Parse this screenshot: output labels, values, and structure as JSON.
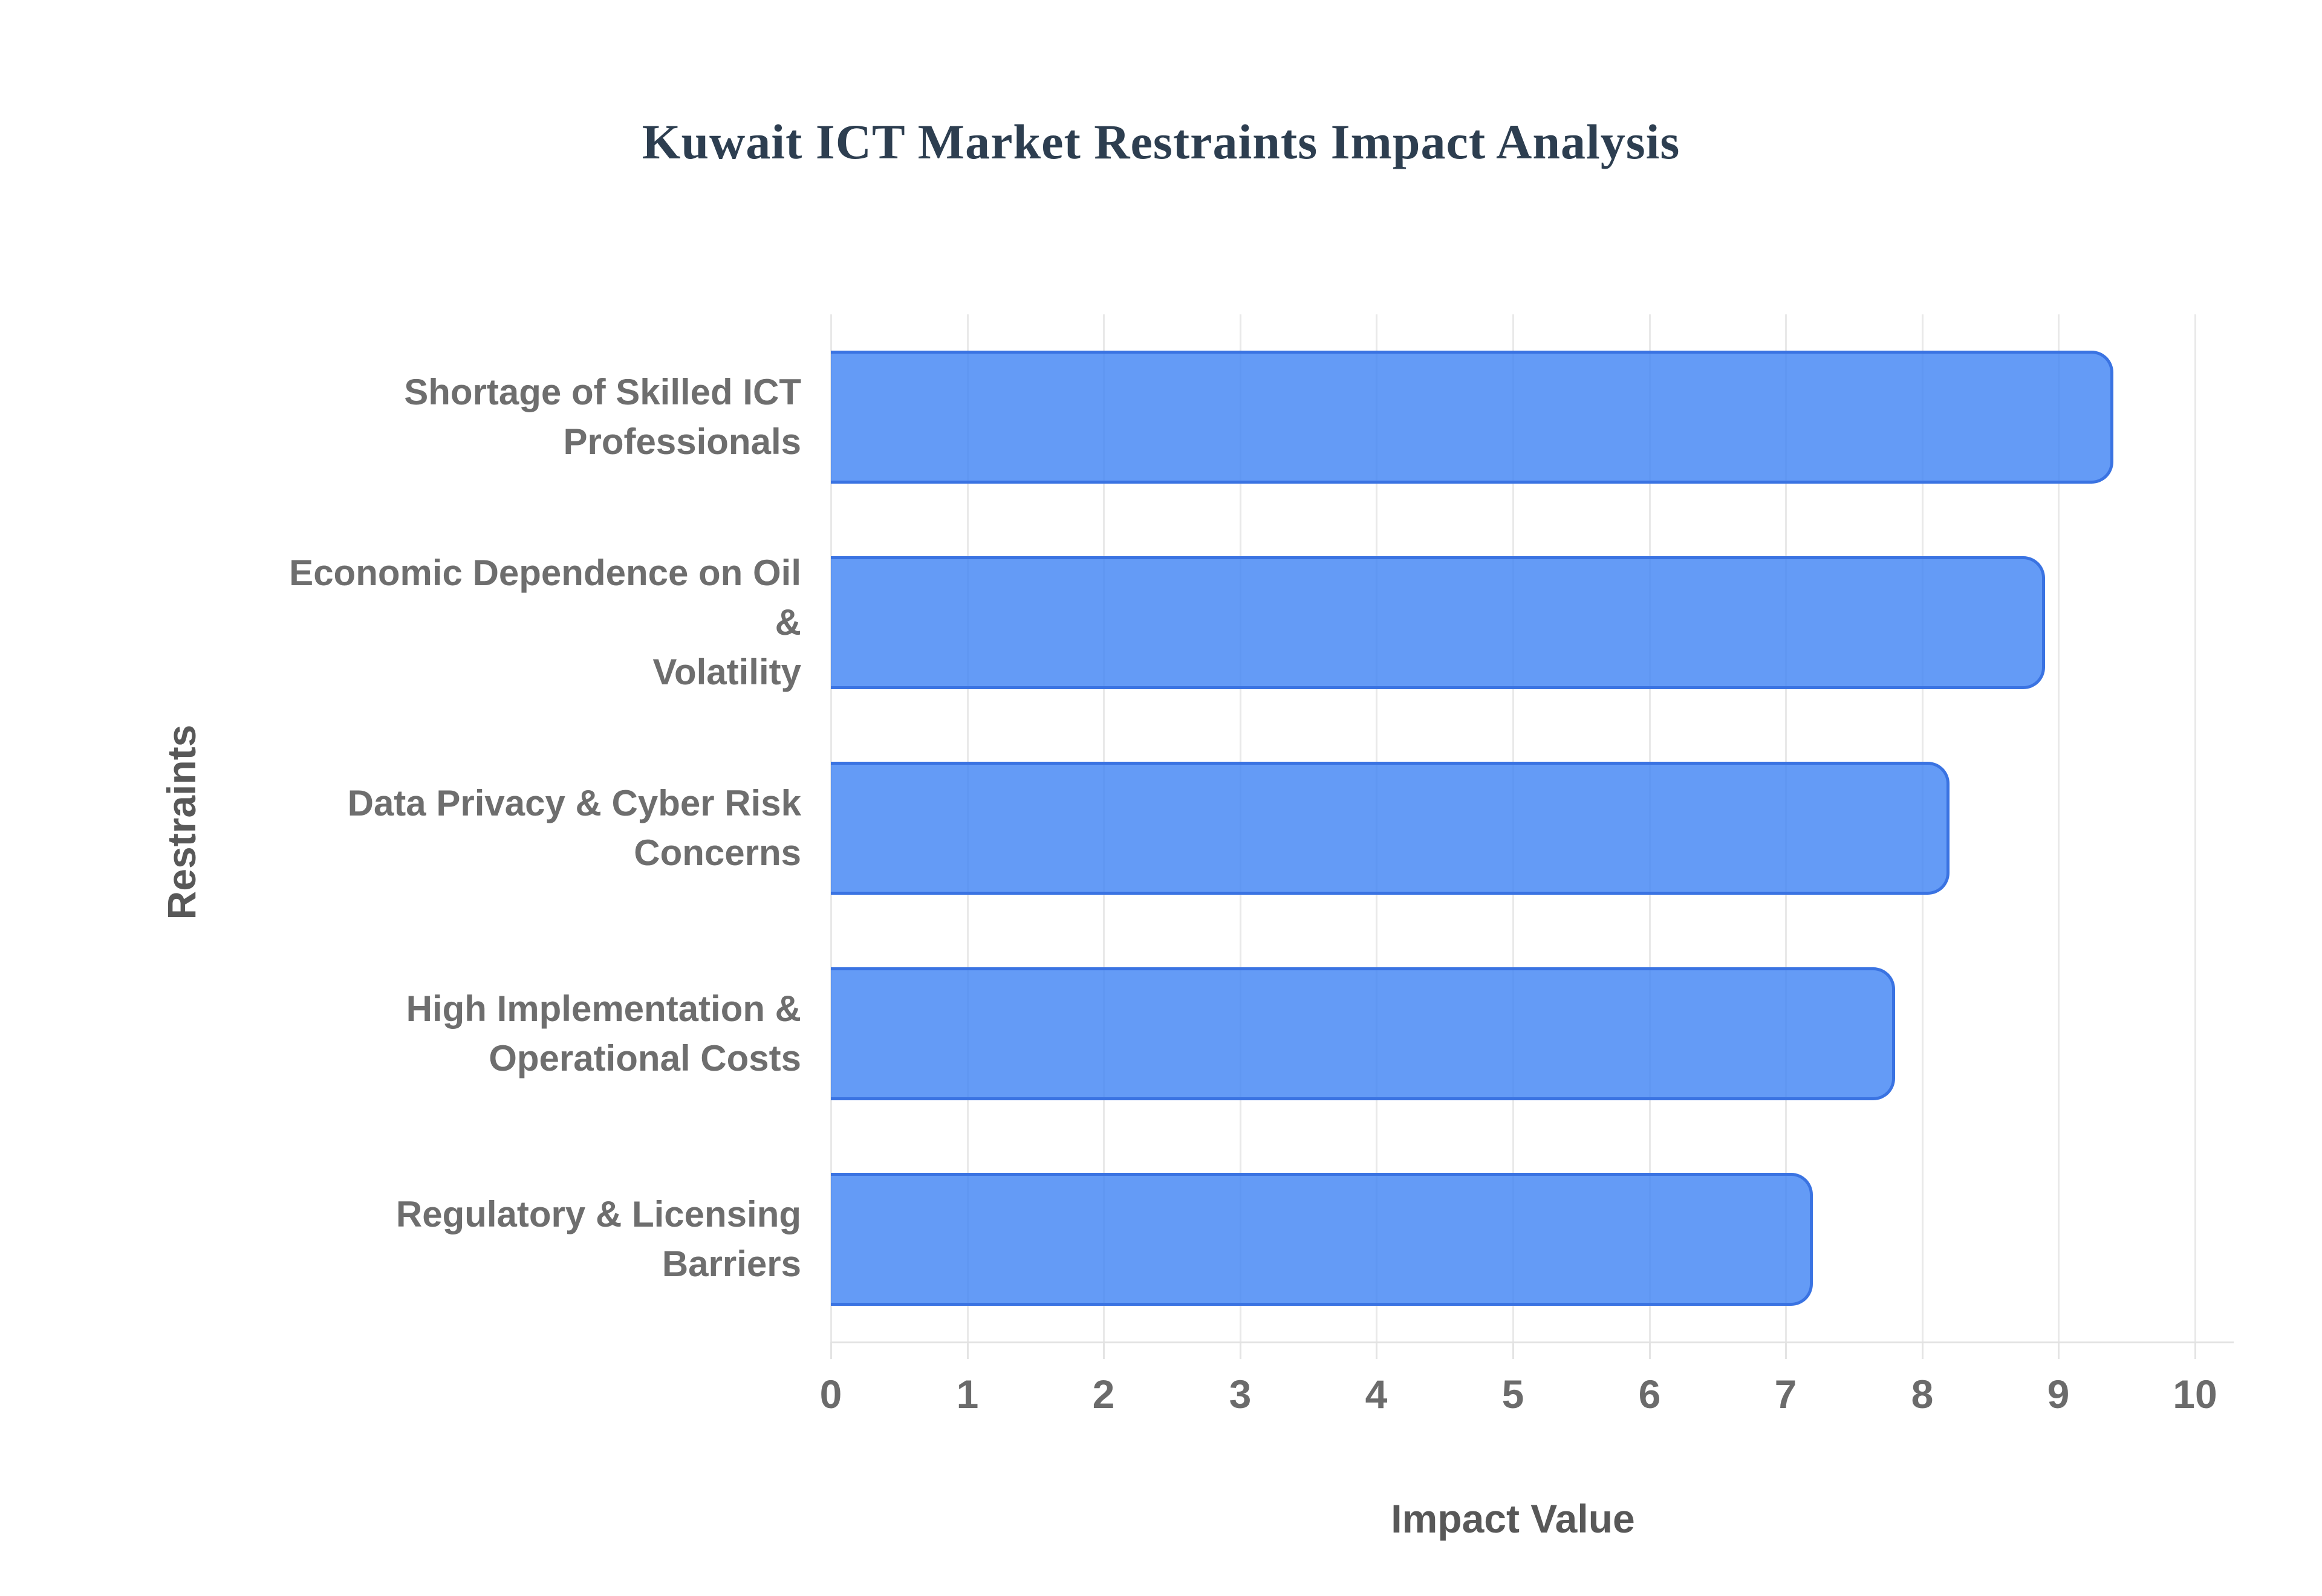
{
  "chart": {
    "title": "Kuwait ICT Market Restraints Impact Analysis",
    "x_axis_label": "Impact Value",
    "y_axis_label": "Restraints"
  },
  "chart_data": {
    "type": "bar",
    "orientation": "horizontal",
    "title": "Kuwait ICT Market Restraints Impact Analysis",
    "categories": [
      "Shortage of Skilled ICT\nProfessionals",
      "Economic Dependence on Oil &\nVolatility",
      "Data Privacy & Cyber Risk\nConcerns",
      "High Implementation &\nOperational Costs",
      "Regulatory & Licensing\nBarriers"
    ],
    "values": [
      9.4,
      8.9,
      8.2,
      7.8,
      7.2
    ],
    "xlabel": "Impact Value",
    "ylabel": "Restraints",
    "xlim": [
      0,
      10
    ],
    "xticks": [
      "0",
      "1",
      "2",
      "3",
      "4",
      "5",
      "6",
      "7",
      "8",
      "9",
      "10"
    ],
    "grid": true,
    "legend": false,
    "colors": {
      "bar_fill": "#4285f4",
      "bar_fill_opacity": 0.82,
      "bar_border": "#3a73e2",
      "gridline": "#e9e9e9",
      "axis_line": "#e2e2e2",
      "title_text": "#2d3e50",
      "category_text": "#6e6e6e",
      "tick_text": "#6b6b6b",
      "axis_title_text": "#585858",
      "background": "#ffffff"
    }
  }
}
